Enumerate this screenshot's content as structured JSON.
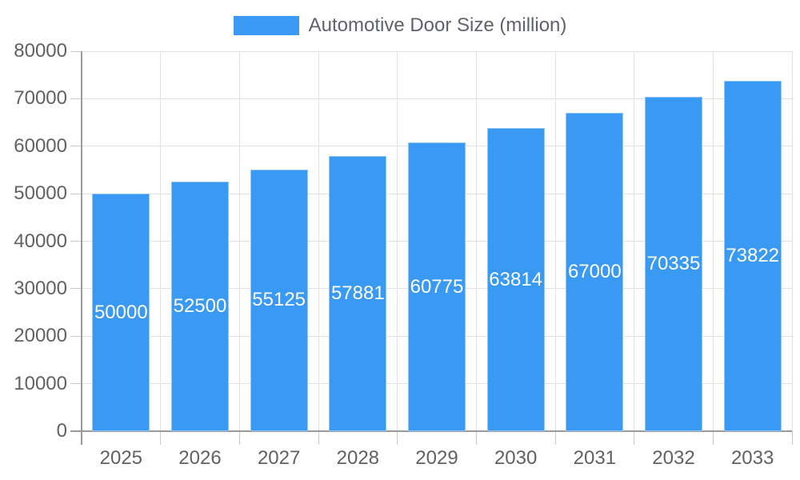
{
  "chart_data": {
    "type": "bar",
    "title": "Automotive Door Size (million)",
    "categories": [
      "2025",
      "2026",
      "2027",
      "2028",
      "2029",
      "2030",
      "2031",
      "2032",
      "2033"
    ],
    "values": [
      50000,
      52500,
      55125,
      57881,
      60775,
      63814,
      67000,
      70335,
      73822
    ],
    "xlabel": "",
    "ylabel": "",
    "ylim": [
      0,
      80000
    ],
    "ytick_step": 10000,
    "ytick_labels": [
      "0",
      "10000",
      "20000",
      "30000",
      "40000",
      "50000",
      "60000",
      "70000",
      "80000"
    ],
    "grid": true,
    "legend_position": "top-center",
    "colors": {
      "bar_fill": "#3a99f2",
      "bar_edge": "rgba(255,255,255,0.45)",
      "value_label": "#ffffff",
      "grid_line": "#e2e2e2",
      "tick_line": "#c9c9c9",
      "axis_line": "#9a9a9a",
      "axis_text": "#616161",
      "legend_text": "#5f6368",
      "background": "#ffffff"
    }
  }
}
